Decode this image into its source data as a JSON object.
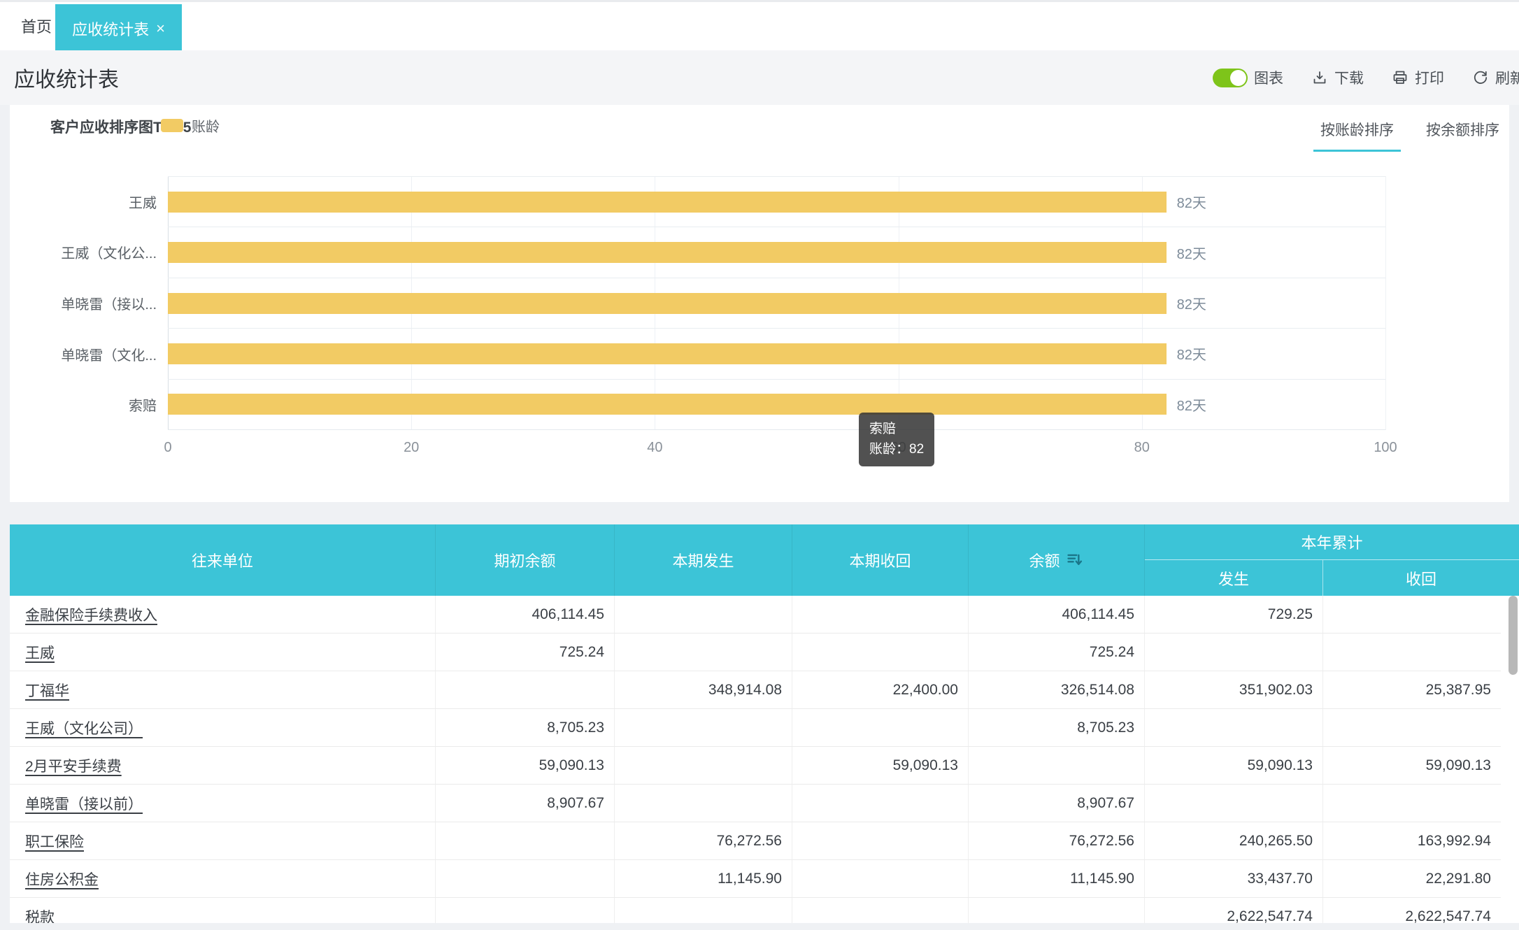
{
  "tabs": {
    "home": "首页",
    "active_tab": "应收统计表",
    "close": "×"
  },
  "toolbar": {
    "title": "应收统计表",
    "chart_toggle_label": "图表",
    "toggle_on": true,
    "download": "下载",
    "print": "打印",
    "refresh": "刷新"
  },
  "chart": {
    "sort_tabs": [
      {
        "label": "按账龄排序",
        "active": true
      },
      {
        "label": "按余额排序",
        "active": false
      }
    ]
  },
  "chart_data": {
    "type": "bar",
    "orientation": "horizontal",
    "title": "客户应收排序图TOP5",
    "series_name": "账龄",
    "categories": [
      "王威",
      "王威（文化公...",
      "单晓雷（接以...",
      "单晓雷（文化...",
      "索赔"
    ],
    "values": [
      82,
      82,
      82,
      82,
      82
    ],
    "value_labels": [
      "82天",
      "82天",
      "82天",
      "82天",
      "82天"
    ],
    "unit": "天",
    "xlim": [
      0,
      100
    ],
    "x_ticks": [
      0,
      20,
      40,
      60,
      80,
      100
    ],
    "grid": true,
    "legend_position": "top-left",
    "bar_color": "#f2cb64",
    "tooltip": {
      "category": "索赔",
      "text": "账龄：82"
    }
  },
  "table": {
    "columns": [
      "往来单位",
      "期初余额",
      "本期发生",
      "本期收回",
      "余额"
    ],
    "group_column": {
      "label": "本年累计",
      "children": [
        "发生",
        "收回"
      ]
    },
    "rows": [
      {
        "name": "金融保险手续费收入",
        "cells": [
          "406,114.45",
          "",
          "",
          "406,114.45",
          "729.25",
          ""
        ]
      },
      {
        "name": "王威",
        "cells": [
          "725.24",
          "",
          "",
          "725.24",
          "",
          ""
        ]
      },
      {
        "name": "丁福华",
        "cells": [
          "",
          "348,914.08",
          "22,400.00",
          "326,514.08",
          "351,902.03",
          "25,387.95"
        ]
      },
      {
        "name": "王威（文化公司）",
        "cells": [
          "8,705.23",
          "",
          "",
          "8,705.23",
          "",
          ""
        ]
      },
      {
        "name": "2月平安手续费",
        "cells": [
          "59,090.13",
          "",
          "59,090.13",
          "",
          "59,090.13",
          "59,090.13"
        ]
      },
      {
        "name": "单晓雷（接以前）",
        "cells": [
          "8,907.67",
          "",
          "",
          "8,907.67",
          "",
          ""
        ]
      },
      {
        "name": "职工保险",
        "cells": [
          "",
          "76,272.56",
          "",
          "76,272.56",
          "240,265.50",
          "163,992.94"
        ]
      },
      {
        "name": "住房公积金",
        "cells": [
          "",
          "11,145.90",
          "",
          "11,145.90",
          "33,437.70",
          "22,291.80"
        ]
      },
      {
        "name": "税款",
        "cells": [
          "",
          "",
          "",
          "",
          "2,622,547.74",
          "2,622,547.74"
        ]
      }
    ]
  },
  "colors": {
    "accent": "#3cc4d7",
    "bar": "#f2cb64",
    "green": "#7ec41a",
    "tooltip": "rgba(50,50,50,0.85)",
    "thumb": "#b8b8b8"
  }
}
